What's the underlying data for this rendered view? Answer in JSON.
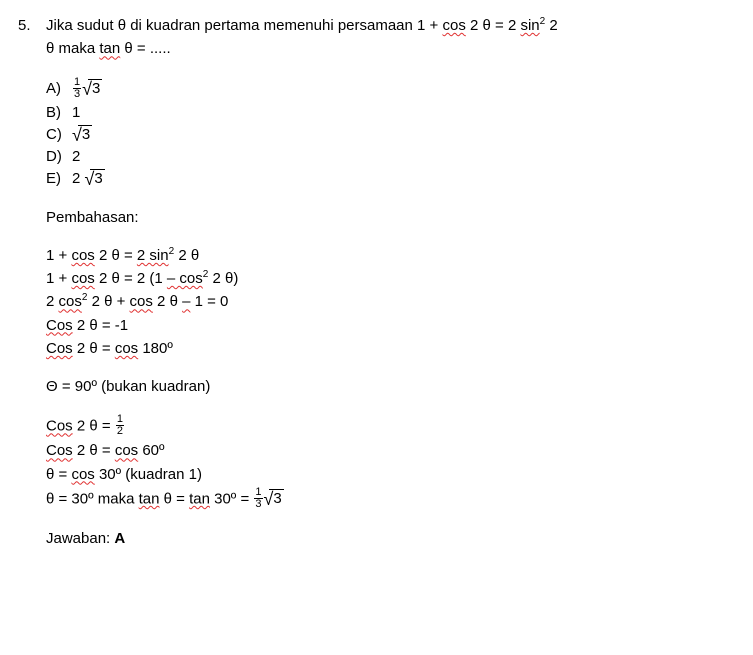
{
  "question": {
    "number": "5.",
    "text_line1_parts": [
      "Jika sudut θ di kuadran pertama memenuhi persamaan 1 + ",
      {
        "wavy": "cos"
      },
      " 2 θ = 2 ",
      {
        "wavy": "sin"
      },
      {
        "sup": "2"
      },
      " 2"
    ],
    "text_line2_parts": [
      "θ maka ",
      {
        "wavy": "tan"
      },
      " θ = ....."
    ]
  },
  "options": [
    {
      "label": "A)",
      "type": "frac_sqrt",
      "frac_num": "1",
      "frac_den": "3",
      "radicand": "3"
    },
    {
      "label": "B)",
      "type": "text",
      "value": "1"
    },
    {
      "label": "C)",
      "type": "sqrt",
      "radicand": "3"
    },
    {
      "label": "D)",
      "type": "text",
      "value": "2"
    },
    {
      "label": "E)",
      "type": "text_sqrt",
      "pre": "2 ",
      "radicand": "3"
    }
  ],
  "pembahasan_label": "Pembahasan:",
  "working1": [
    [
      "1 + ",
      {
        "wavy": "cos"
      },
      " 2 θ = ",
      {
        "wavy": "2 sin"
      },
      {
        "sup": "2"
      },
      " 2 θ"
    ],
    [
      "1 + ",
      {
        "wavy": "cos"
      },
      " 2 θ = 2 (1 ",
      {
        "wavy": "– cos"
      },
      {
        "sup": "2"
      },
      " 2 θ)"
    ],
    [
      "2 ",
      {
        "wavy": "cos"
      },
      {
        "sup": "2"
      },
      " 2 θ + ",
      {
        "wavy": "cos"
      },
      " 2 θ ",
      {
        "wavy": "–"
      },
      " 1 = 0"
    ],
    [
      {
        "wavy": "Cos"
      },
      " 2 θ = -1"
    ],
    [
      {
        "wavy": "Cos"
      },
      " 2 θ = ",
      {
        "wavy": "cos"
      },
      " 180º"
    ]
  ],
  "working2": [
    [
      "Θ = 90º (bukan kuadran)"
    ]
  ],
  "working3": [
    [
      {
        "wavy": "Cos"
      },
      " 2 θ = ",
      {
        "frac": {
          "num": "1",
          "den": "2"
        }
      }
    ],
    [
      {
        "wavy": "Cos"
      },
      " 2 θ = ",
      {
        "wavy": "cos"
      },
      " 60º"
    ],
    [
      "θ = ",
      {
        "wavy": "cos"
      },
      " 30º (kuadran 1)"
    ],
    [
      "θ = 30º maka ",
      {
        "wavy": "tan"
      },
      " θ = ",
      {
        "wavy": "tan"
      },
      " 30º = ",
      {
        "frac": {
          "num": "1",
          "den": "3"
        }
      },
      {
        "sqrt": "3"
      }
    ]
  ],
  "answer_label": "Jawaban: ",
  "answer_value": "A"
}
